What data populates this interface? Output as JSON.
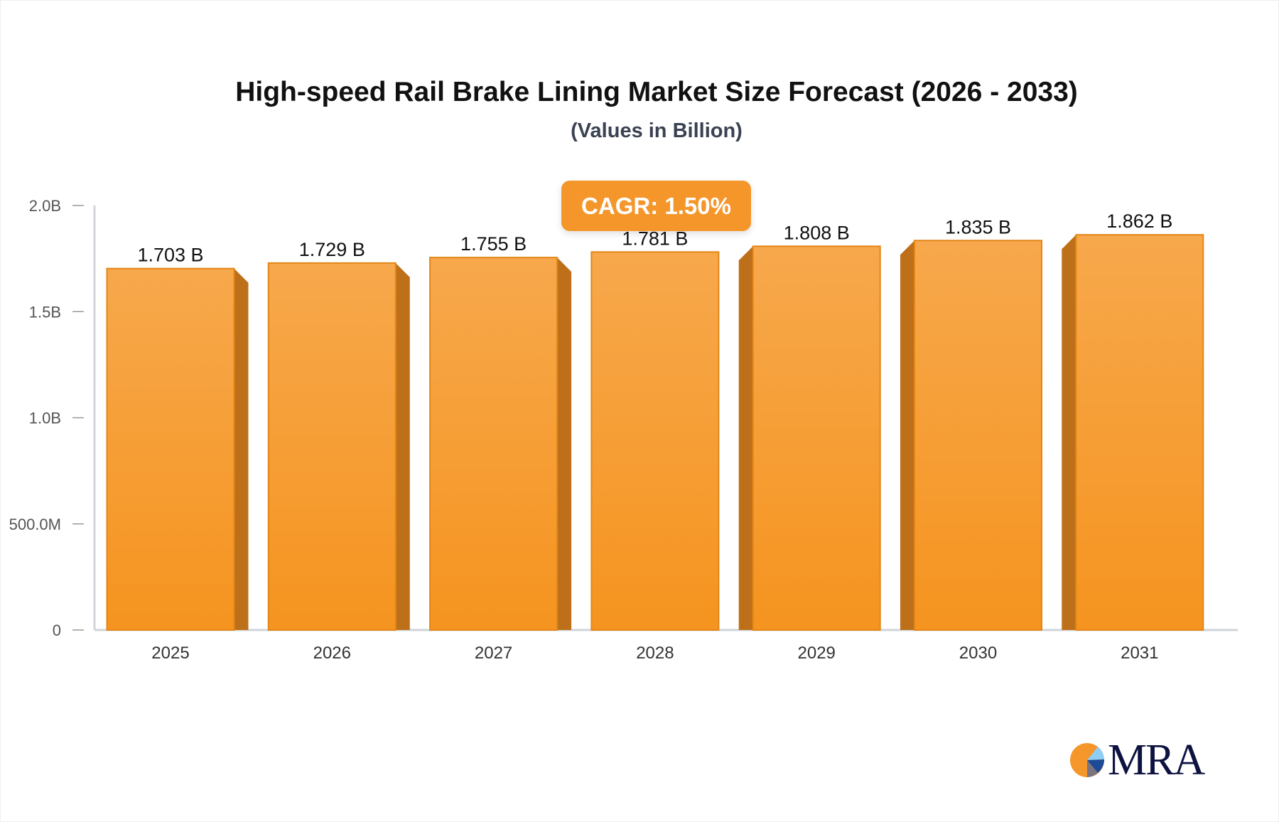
{
  "chart_data": {
    "type": "bar",
    "title": "High-speed Rail Brake Lining Market Size Forecast (2026 - 2033)",
    "subtitle": "(Values in Billion)",
    "categories": [
      "2025",
      "2026",
      "2027",
      "2028",
      "2029",
      "2030",
      "2031"
    ],
    "values": [
      1.703,
      1.729,
      1.755,
      1.781,
      1.808,
      1.835,
      1.862
    ],
    "data_labels": [
      "1.703 B",
      "1.729 B",
      "1.755 B",
      "1.781 B",
      "1.808 B",
      "1.835 B",
      "1.862 B"
    ],
    "y_ticks": [
      {
        "v": 0,
        "label": "0"
      },
      {
        "v": 0.5,
        "label": "500.0M"
      },
      {
        "v": 1.0,
        "label": "1.0B"
      },
      {
        "v": 1.5,
        "label": "1.5B"
      },
      {
        "v": 2.0,
        "label": "2.0B"
      }
    ],
    "ylim": [
      0,
      2.0
    ],
    "grid": false,
    "bar_color": "#f5962a",
    "bar_side_color": "#bd7019"
  },
  "cagr_label": "CAGR: 1.50%",
  "logo": {
    "text": "MRA"
  }
}
